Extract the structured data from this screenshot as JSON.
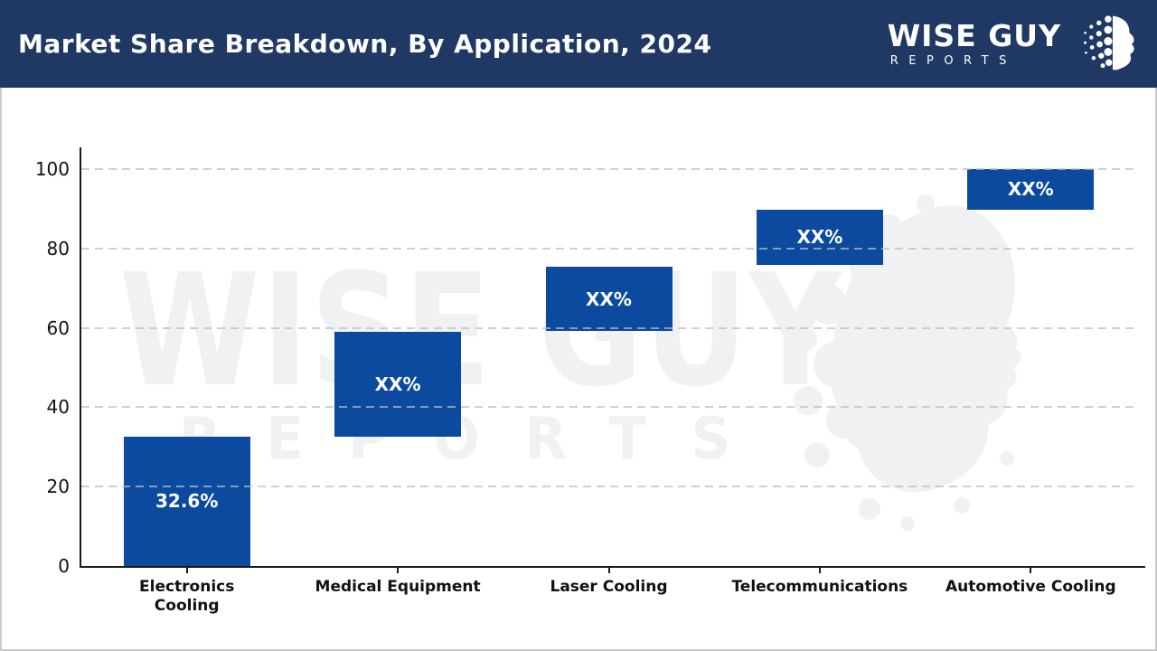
{
  "header": {
    "title": "Market Share Breakdown, By Application, 2024",
    "logo": {
      "name_top": "WISE GUY",
      "name_bottom": "REPORTS"
    }
  },
  "watermark": {
    "line1": "WISE GUY",
    "line2": "REPORTS"
  },
  "colors": {
    "header_bg": "#1f3864",
    "bar": "#0b4a9e",
    "bar_label_text": "#ffffff",
    "grid": "#bdbdbd",
    "axis": "#1a1a1a",
    "watermark": "#f0f1f3",
    "canvas_border": "#c9cacb"
  },
  "chart_data": {
    "type": "bar",
    "subtype": "floating-waterfall",
    "title": "Market Share Breakdown, By Application, 2024",
    "xlabel": "",
    "ylabel": "",
    "ylim": [
      0,
      100
    ],
    "yticks": [
      0,
      20,
      40,
      60,
      80,
      100
    ],
    "grid": "dashed-horizontal",
    "legend": "none",
    "categories": [
      [
        "Electronics",
        "Cooling"
      ],
      [
        "Medical Equipment"
      ],
      [
        "Laser Cooling"
      ],
      [
        "Telecommunications"
      ],
      [
        "Automotive Cooling"
      ]
    ],
    "bars": [
      {
        "start": 0,
        "end": 32.6,
        "label": "32.6%"
      },
      {
        "start": 32.6,
        "end": 59.0,
        "label": "XX%"
      },
      {
        "start": 59.2,
        "end": 75.4,
        "label": "XX%"
      },
      {
        "start": 75.9,
        "end": 89.8,
        "label": "XX%"
      },
      {
        "start": 89.8,
        "end": 100.0,
        "label": "XX%"
      }
    ]
  }
}
